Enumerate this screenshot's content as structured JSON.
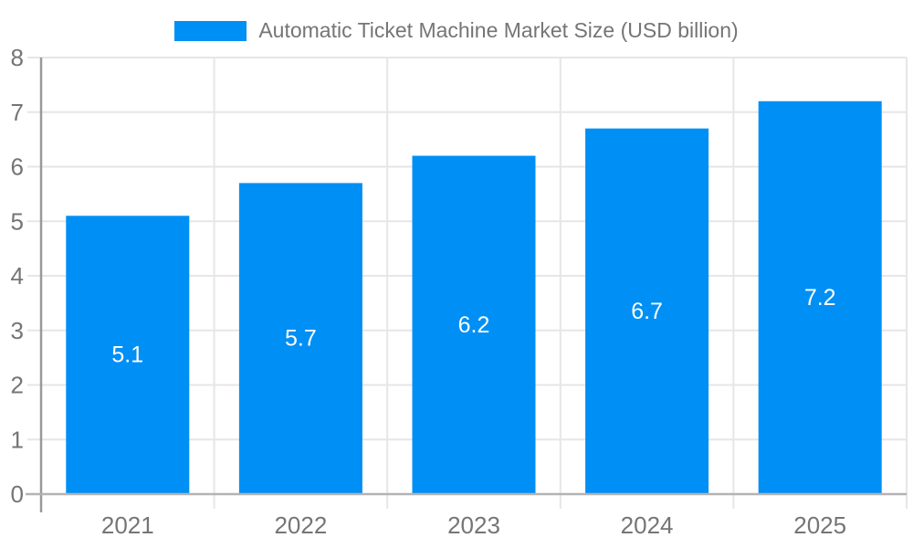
{
  "chart_data": {
    "type": "bar",
    "title": "Automatic Ticket Machine Market Size (USD billion)",
    "categories": [
      "2021",
      "2022",
      "2023",
      "2024",
      "2025"
    ],
    "values": [
      5.1,
      5.7,
      6.2,
      6.7,
      7.2
    ],
    "value_labels": [
      "5.1",
      "5.7",
      "6.2",
      "6.7",
      "7.2"
    ],
    "ytick_labels": [
      "0",
      "1",
      "2",
      "3",
      "4",
      "5",
      "6",
      "7",
      "8"
    ],
    "ylim": [
      0,
      8
    ],
    "ytick_step": 1,
    "grid": true,
    "legend_position": "top",
    "colors": {
      "bar": "#008FF5",
      "value_label": "#ffffff",
      "axis_text": "#757575",
      "gridline": "#e6e6e6",
      "y_axis_line": "#999999",
      "x_axis_line": "#b3b3b3",
      "background": "#ffffff"
    }
  }
}
